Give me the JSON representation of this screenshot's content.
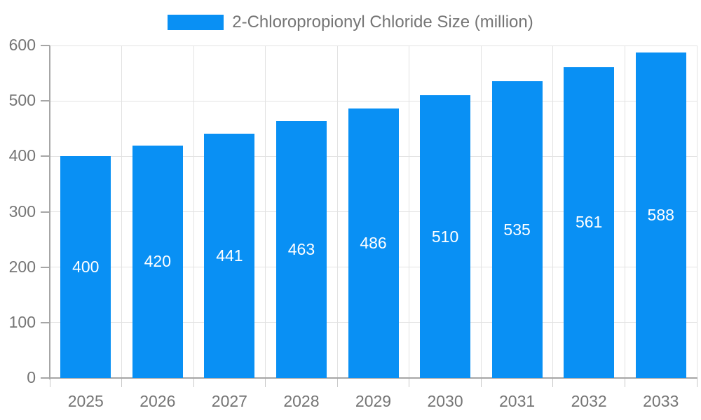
{
  "chart_data": {
    "type": "bar",
    "legend": "2-Chloropropionyl Chloride Size (million)",
    "legend_position": "top",
    "categories": [
      "2025",
      "2026",
      "2027",
      "2028",
      "2029",
      "2030",
      "2031",
      "2032",
      "2033"
    ],
    "values": [
      400,
      420,
      441,
      463,
      486,
      510,
      535,
      561,
      588
    ],
    "xlabel": "",
    "ylabel": "",
    "ylim": [
      0,
      600
    ],
    "yticks": [
      0,
      100,
      200,
      300,
      400,
      500,
      600
    ],
    "grid": true,
    "bar_color": "#0990F4",
    "bar_label_color": "#ffffff",
    "axis_text_color": "#757575",
    "grid_color": "#e2e2e2",
    "axis_line_color": "#a6a6a6"
  }
}
